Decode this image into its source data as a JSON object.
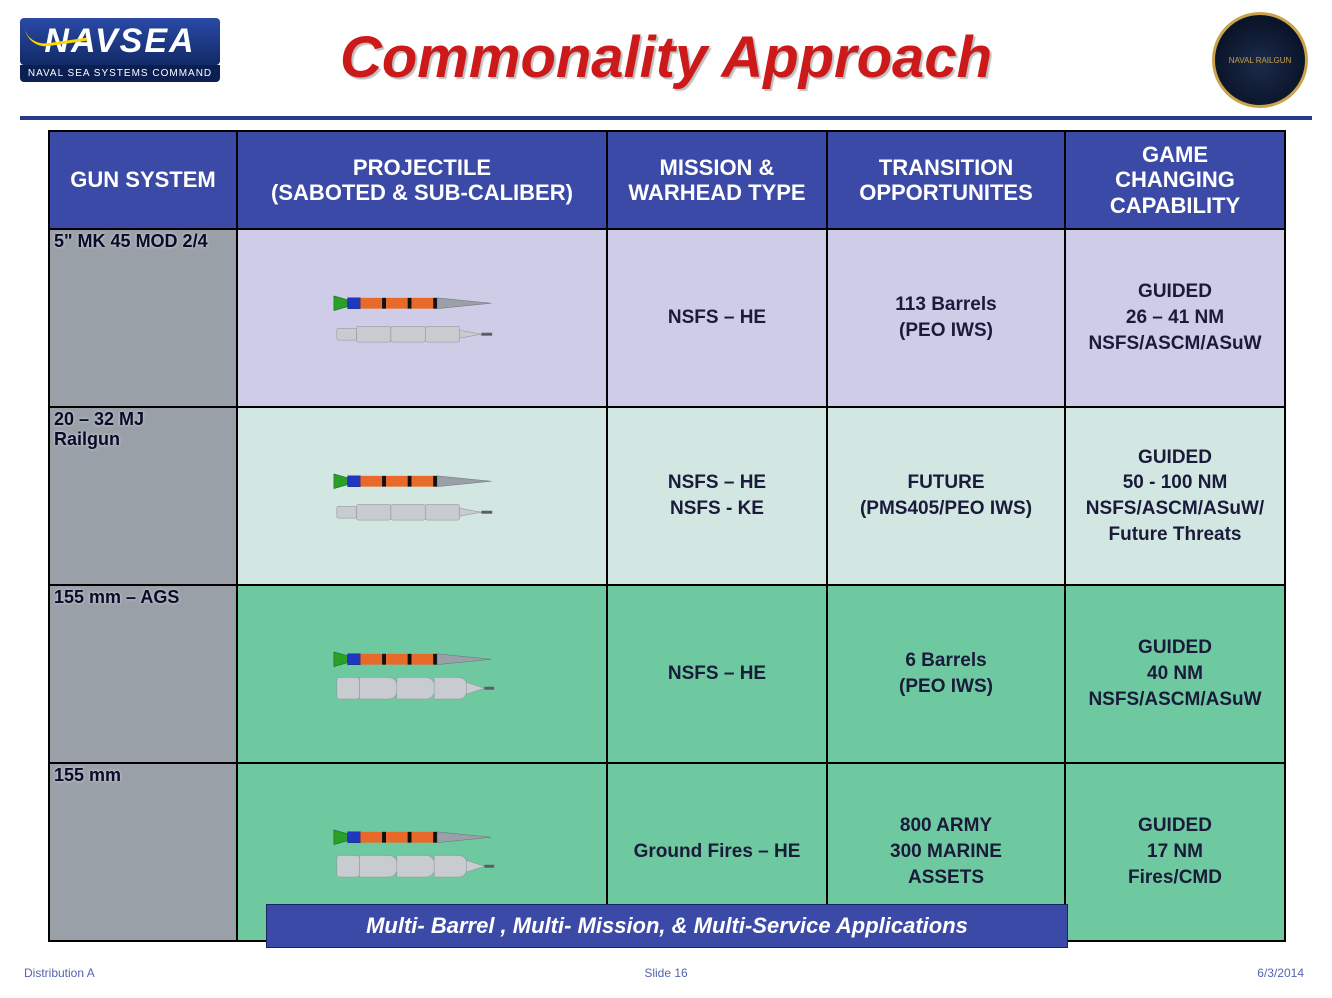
{
  "header": {
    "logo_text": "NAVSEA",
    "logo_subtext": "NAVAL SEA SYSTEMS COMMAND",
    "title": "Commonality Approach",
    "right_badge_label": "NAVAL RAILGUN",
    "title_color": "#cc1a1a",
    "title_fontsize": 58
  },
  "table": {
    "columns": [
      "GUN SYSTEM",
      "PROJECTILE\n(SABOTED & SUB-CALIBER)",
      "MISSION &\nWARHEAD TYPE",
      "TRANSITION\nOPPORTUNITES",
      "GAME\nCHANGING\nCAPABILITY"
    ],
    "header_bg": "#3b4aa6",
    "header_fg": "#ffffff",
    "rows": [
      {
        "bg": "#cfcce8",
        "gun_label": "5\" MK 45 MOD 2/4",
        "sabot_style": "slim",
        "mission": "NSFS – HE",
        "transition": "113 Barrels\n(PEO IWS)",
        "capability": "GUIDED\n26 – 41 NM\nNSFS/ASCM/ASuW"
      },
      {
        "bg": "#d2e6e2",
        "gun_label": "20 – 32 MJ\nRailgun",
        "sabot_style": "slim",
        "mission": "NSFS – HE\nNSFS - KE",
        "transition": "FUTURE\n(PMS405/PEO IWS)",
        "capability": "GUIDED\n50 - 100 NM\nNSFS/ASCM/ASuW/\nFuture Threats"
      },
      {
        "bg": "#6fc9a0",
        "gun_label": "155 mm – AGS",
        "sabot_style": "wide",
        "mission": "NSFS – HE",
        "transition": "6 Barrels\n(PEO IWS)",
        "capability": "GUIDED\n40 NM\nNSFS/ASCM/ASuW"
      },
      {
        "bg": "#6fc9a0",
        "gun_label": "155 mm",
        "sabot_style": "wide",
        "mission": "Ground Fires – HE",
        "transition": "800 ARMY\n300 MARINE\nASSETS",
        "capability": "GUIDED\n17 NM\nFires/CMD"
      }
    ]
  },
  "projectile_colors": {
    "fin": "#2aa028",
    "body1": "#2038c0",
    "segment": "#e86a2a",
    "band": "#101010",
    "nose": "#9aa0a8",
    "sabot": "#c8ccd0",
    "sabot_edge": "#8a8e94"
  },
  "footer": {
    "bar_text": "Multi- Barrel ,  Multi- Mission, & Multi-Service Applications",
    "bar_bg": "#3b4aa6",
    "bar_fg": "#ffffff",
    "distribution": "Distribution A",
    "slide": "Slide 16",
    "date": "6/3/2014"
  }
}
